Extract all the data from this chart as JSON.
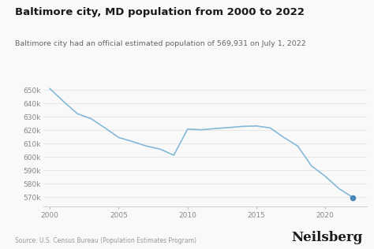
{
  "title": "Baltimore city, MD population from 2000 to 2022",
  "subtitle": "Baltimore city had an official estimated population of 569,931 on July 1, 2022",
  "source": "Source: U.S. Census Bureau (Population Estimates Program)",
  "brand": "Neilsberg",
  "years": [
    2000,
    2001,
    2002,
    2003,
    2004,
    2005,
    2006,
    2007,
    2008,
    2009,
    2010,
    2011,
    2012,
    2013,
    2014,
    2015,
    2016,
    2017,
    2018,
    2019,
    2020,
    2021,
    2022
  ],
  "population": [
    651154,
    641494,
    632438,
    628670,
    621849,
    614664,
    611648,
    608285,
    606017,
    601468,
    620961,
    620472,
    621342,
    622104,
    622971,
    623284,
    621849,
    614664,
    608285,
    593490,
    585708,
    576498,
    569931
  ],
  "line_color": "#85b9d9",
  "dot_color": "#4a86b8",
  "bg_color": "#f9f9f9",
  "ytick_labels": [
    "570k",
    "580k",
    "590k",
    "600k",
    "610k",
    "620k",
    "630k",
    "640k",
    "650k"
  ],
  "ytick_values": [
    570000,
    580000,
    590000,
    600000,
    610000,
    620000,
    630000,
    640000,
    650000
  ],
  "xtick_labels": [
    "2000",
    "2005",
    "2010",
    "2015",
    "2020"
  ],
  "xtick_values": [
    2000,
    2005,
    2010,
    2015,
    2020
  ],
  "ylim": [
    563000,
    656000
  ],
  "xlim": [
    1999.5,
    2023.0
  ],
  "title_fontsize": 9.5,
  "subtitle_fontsize": 6.8,
  "tick_fontsize": 6.5,
  "source_fontsize": 5.5,
  "brand_fontsize": 12
}
